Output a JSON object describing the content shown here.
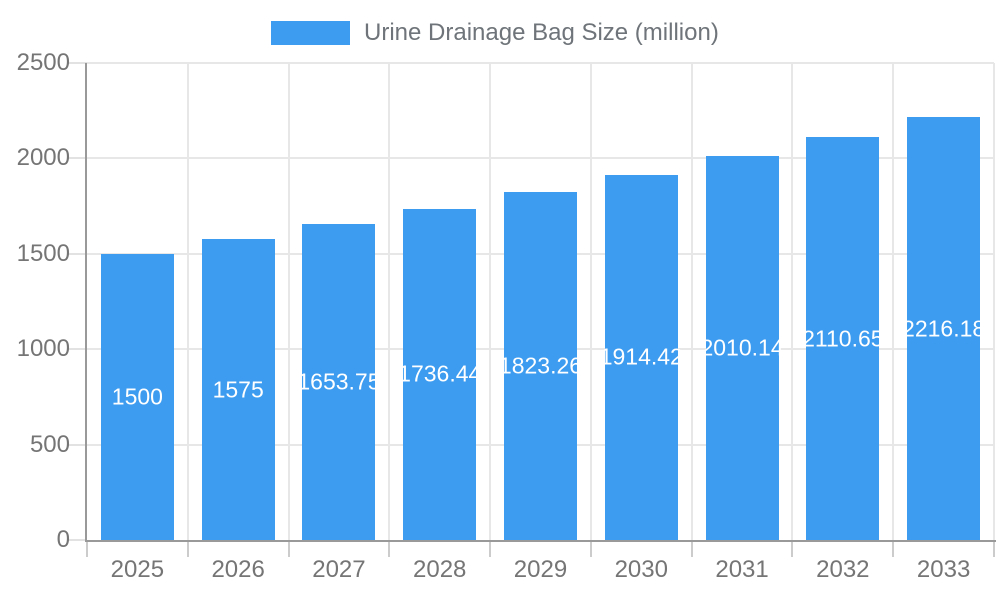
{
  "page": {
    "background_color": "#ffffff"
  },
  "legend": {
    "label": "Urine Drainage Bag Size (million)",
    "swatch_color": "#3d9cf0",
    "position": "top-center"
  },
  "chart_data": {
    "type": "bar",
    "title": "Urine Drainage Bag Size (million)",
    "categories": [
      "2025",
      "2026",
      "2027",
      "2028",
      "2029",
      "2030",
      "2031",
      "2032",
      "2033"
    ],
    "series": [
      {
        "name": "Urine Drainage Bag Size (million)",
        "values": [
          1500,
          1575,
          1653.75,
          1736.44,
          1823.26,
          1914.42,
          2010.14,
          2110.65,
          2216.18
        ],
        "value_labels": [
          "1500",
          "1575",
          "1653.75",
          "1736.44",
          "1823.26",
          "1914.42",
          "2010.14",
          "2110.65",
          "2216.18"
        ]
      }
    ],
    "xlabel": "",
    "ylabel": "",
    "ylim": [
      0,
      2500
    ],
    "yticks": [
      0,
      500,
      1000,
      1500,
      2000,
      2500
    ],
    "grid": true,
    "legend_position": "top",
    "bar_color": "#3d9cf0",
    "bar_label_color": "#ffffff",
    "axis_label_color": "#757575",
    "axis_line_color": "#999999",
    "gridline_color": "#e7e7e7"
  }
}
